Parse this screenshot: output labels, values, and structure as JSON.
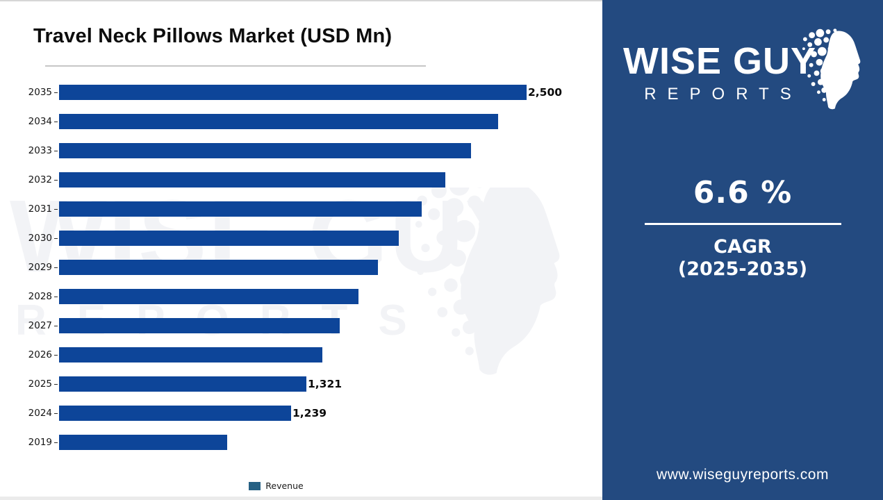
{
  "chart_data": {
    "type": "bar",
    "orientation": "horizontal",
    "title": "Travel Neck Pillows Market (USD Mn)",
    "xlabel": "",
    "ylabel": "",
    "categories": [
      "2035",
      "2034",
      "2033",
      "2032",
      "2031",
      "2030",
      "2029",
      "2028",
      "2027",
      "2026",
      "2025",
      "2024",
      "2019"
    ],
    "values": [
      2500,
      2348,
      2203,
      2066,
      1938,
      1818,
      1706,
      1600,
      1501,
      1408,
      1321,
      1239,
      900
    ],
    "value_labels": [
      "2,500",
      "",
      "",
      "",
      "",
      "",
      "",
      "",
      "",
      "",
      "1,321",
      "1,239",
      ""
    ],
    "xlim": [
      0,
      2600
    ],
    "grid": false,
    "legend_entries": [
      "Revenue"
    ],
    "legend_position": "bottom",
    "bar_color": "#0d4599"
  },
  "colors": {
    "bar": "#0d4599",
    "legend_swatch": "#266184",
    "panel_bg": "#234a80",
    "watermark": "#f2f3f6"
  },
  "watermark": {
    "line1": "WISE GUY",
    "line2": "REPORTS"
  },
  "panel": {
    "brand_line1": "WISE GUY",
    "brand_line2": "REPORTS",
    "cagr_value": "6.6 %",
    "cagr_label_line1": "CAGR",
    "cagr_label_line2": "(2025-2035)",
    "website": "www.wiseguyreports.com"
  }
}
